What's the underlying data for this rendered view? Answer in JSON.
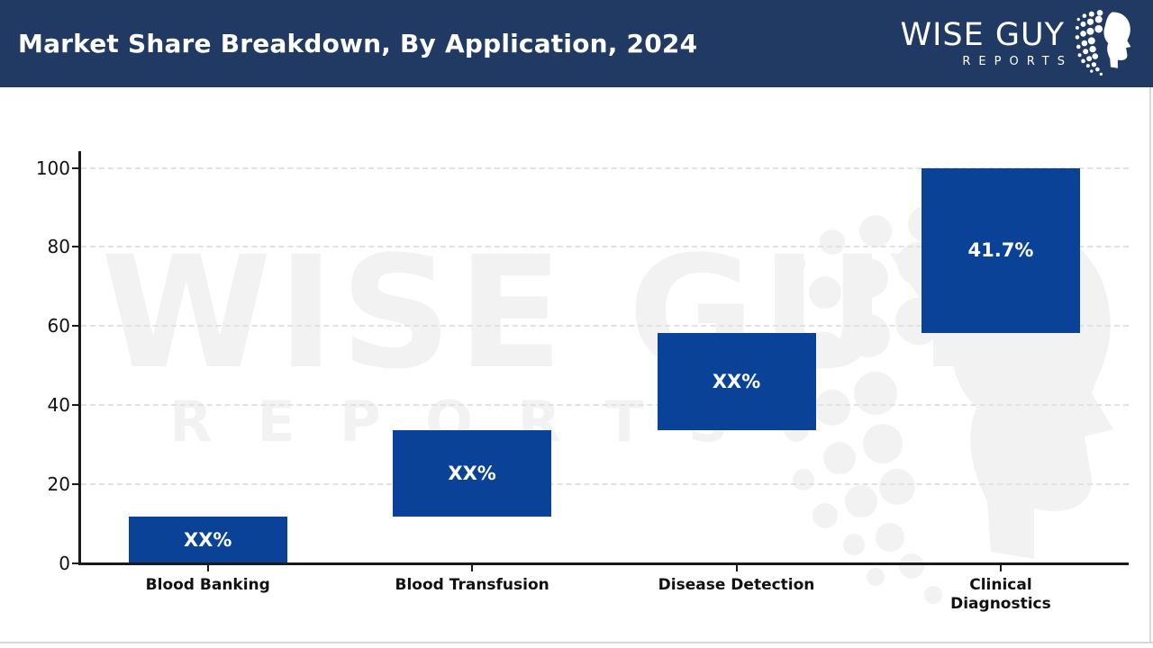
{
  "header": {
    "title": "Market Share Breakdown, By Application, 2024",
    "logo": {
      "line1": "WISE GUY",
      "line2": "REPORTS"
    }
  },
  "watermark": {
    "line1": "WISE GUY",
    "line2": "R E P O R T S"
  },
  "chart_data": {
    "type": "bar",
    "subtype": "floating-waterfall",
    "title": "Market Share Breakdown, By Application, 2024",
    "categories": [
      "Blood Banking",
      "Blood Transfusion",
      "Disease Detection",
      "Clinical Diagnostics"
    ],
    "categories_display": [
      "Blood Banking",
      "Blood Transfusion",
      "Disease Detection",
      "Clinical\nDiagnostics"
    ],
    "segments": [
      {
        "category": "Blood Banking",
        "start": 0,
        "end": 11.7,
        "label": "XX%"
      },
      {
        "category": "Blood Transfusion",
        "start": 11.7,
        "end": 33.7,
        "label": "XX%"
      },
      {
        "category": "Disease Detection",
        "start": 33.7,
        "end": 58.3,
        "label": "XX%"
      },
      {
        "category": "Clinical Diagnostics",
        "start": 58.3,
        "end": 100,
        "label": "41.7%"
      }
    ],
    "xlabel": "",
    "ylabel": "",
    "ylim": [
      0,
      100
    ],
    "yticks": [
      0,
      20,
      40,
      60,
      80,
      100
    ],
    "grid": "horizontal-dashed",
    "legend": "none",
    "bar_color": "#0a4298",
    "bar_label_color": "#ffffff"
  },
  "colors": {
    "header_bg": "#203a64",
    "header_text": "#ffffff",
    "page_bg": "#ffffff",
    "axis": "#1a1a1a",
    "tick_text": "#111111",
    "gridline": "#e2e2e2",
    "watermark": "#f2f2f2",
    "border_line": "#d8d8d8"
  }
}
